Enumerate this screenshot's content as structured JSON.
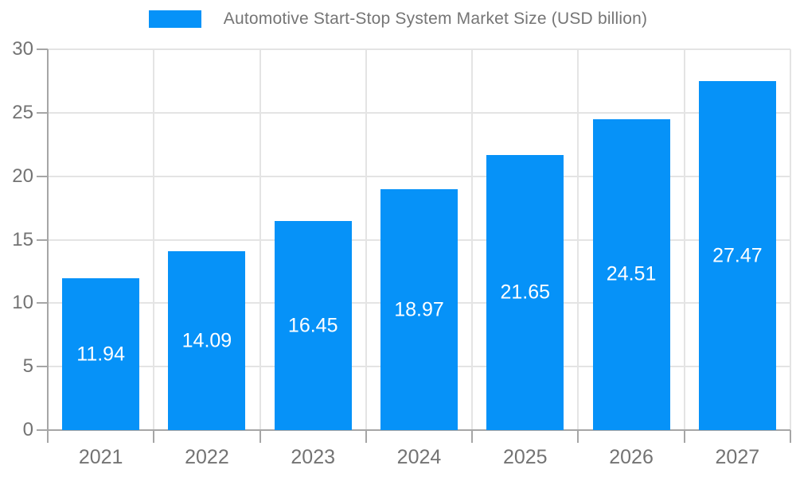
{
  "legend": {
    "label": "Automotive Start-Stop System Market Size (USD billion)",
    "swatch_color": "#0692F8"
  },
  "colors": {
    "bar": "#0692F8",
    "grid": "#E4E4E4",
    "axis": "#A6A6A6",
    "tick_label": "#737373",
    "value_label": "#FFFFFF",
    "background": "#FFFFFF"
  },
  "chart_data": {
    "type": "bar",
    "title": "Automotive Start-Stop System Market Size (USD billion)",
    "categories": [
      "2021",
      "2022",
      "2023",
      "2024",
      "2025",
      "2026",
      "2027"
    ],
    "values": [
      11.94,
      14.09,
      16.45,
      18.97,
      21.65,
      24.51,
      27.47
    ],
    "value_labels": [
      "11.94",
      "14.09",
      "16.45",
      "18.97",
      "21.65",
      "24.51",
      "27.47"
    ],
    "xlabel": "",
    "ylabel": "",
    "ylim": [
      0,
      30
    ],
    "yticks": [
      0,
      5,
      10,
      15,
      20,
      25,
      30
    ],
    "ytick_labels": [
      "0",
      "5",
      "10",
      "15",
      "20",
      "25",
      "30"
    ],
    "grid": true,
    "legend_position": "top-center",
    "value_label_position": "inside-center"
  }
}
